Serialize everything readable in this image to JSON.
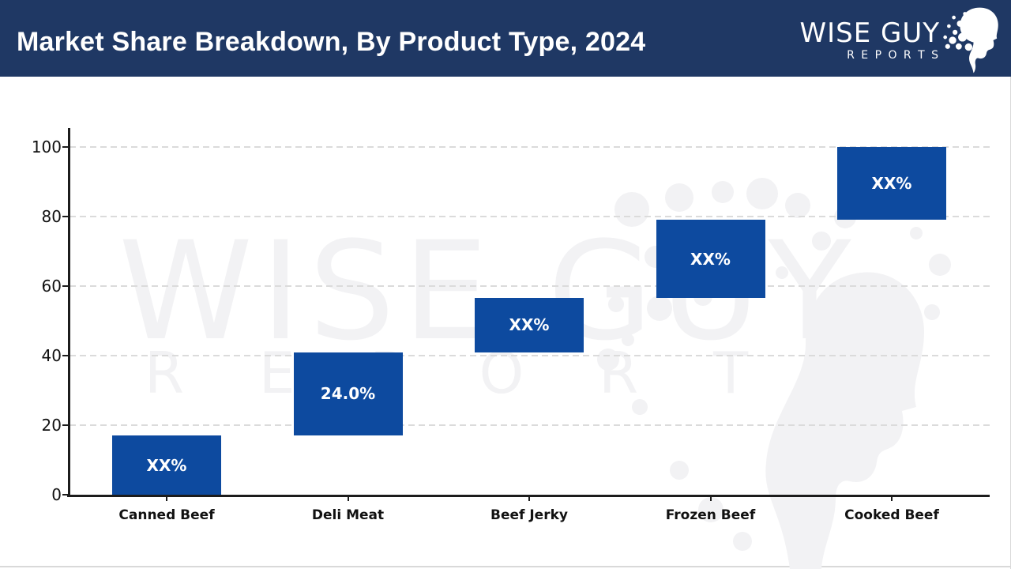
{
  "header": {
    "title": "Market Share Breakdown, By Product Type, 2024",
    "logo": {
      "brand": "WISE GUY",
      "sub": "R E P O R T S"
    }
  },
  "watermark": {
    "line1": "WISE GUY",
    "line2": "R E P O R T S"
  },
  "chart_data": {
    "type": "bar",
    "subtype": "floating-waterfall",
    "title": "Market Share Breakdown, By Product Type, 2024",
    "categories": [
      "Canned Beef",
      "Deli Meat",
      "Beef Jerky",
      "Frozen Beef",
      "Cooked Beef"
    ],
    "segments": [
      {
        "category": "Canned Beef",
        "start": 0,
        "end": 17,
        "value": 17,
        "label": "XX%"
      },
      {
        "category": "Deli Meat",
        "start": 17,
        "end": 41,
        "value": 24,
        "label": "24.0%"
      },
      {
        "category": "Beef Jerky",
        "start": 41,
        "end": 56.5,
        "value": 15.5,
        "label": "XX%"
      },
      {
        "category": "Frozen Beef",
        "start": 56.5,
        "end": 79,
        "value": 22.5,
        "label": "XX%"
      },
      {
        "category": "Cooked Beef",
        "start": 79,
        "end": 100,
        "value": 21,
        "label": "XX%"
      }
    ],
    "xlabel": "",
    "ylabel": "",
    "yticks": [
      0,
      20,
      40,
      60,
      80,
      100
    ],
    "ylim": [
      0,
      105
    ],
    "grid": "horizontal-dashed",
    "legend": null
  },
  "colors": {
    "header_bg": "#1f3864",
    "header_text": "#ffffff",
    "bar": "#0d4a9f",
    "bar_label": "#ffffff",
    "axis": "#1c1c1c",
    "grid": "#dbdbdb",
    "tick_label": "#111111",
    "watermark": "#f2f2f4"
  }
}
